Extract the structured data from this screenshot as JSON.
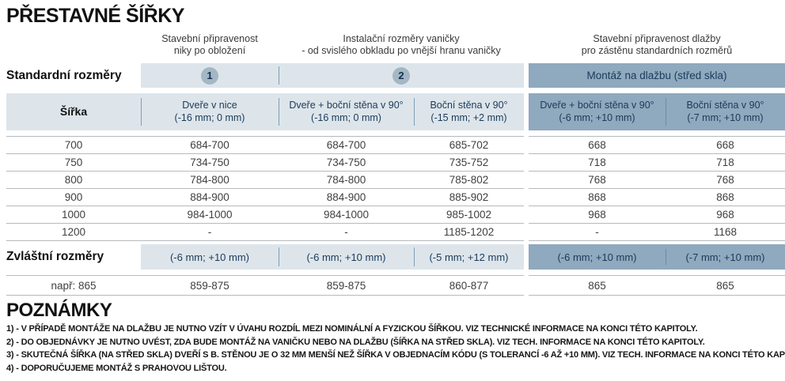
{
  "title": "PŘESTAVNÉ ŠÍŘKY",
  "group_headers": {
    "niche": "Stavební připravenost\nniky po obložení",
    "tray": "Instalační rozměry vaničky\n- od svislého obkladu po vnější hranu vaničky",
    "tile": "Stavební připravenost dlažby\npro zástěnu standardních rozměrů"
  },
  "standard_row": {
    "label": "Standardní rozměry",
    "badge1": "1",
    "badge2": "2",
    "tile_band": "Montáž na dlažbu (střed skla)"
  },
  "columns": {
    "width": "Šířka",
    "c1": "Dveře v nice\n(-16 mm; 0 mm)",
    "c2": "Dveře + boční stěna v 90°\n(-16 mm; 0 mm)",
    "c3": "Boční stěna v 90°\n(-15 mm; +2 mm)",
    "c4": "Dveře + boční stěna v 90°\n(-6 mm; +10 mm)",
    "c5": "Boční stěna v 90°\n(-7 mm; +10 mm)"
  },
  "rows": [
    {
      "width": "700",
      "values": [
        "684-700",
        "684-700",
        "685-702",
        "668",
        "668"
      ]
    },
    {
      "width": "750",
      "values": [
        "734-750",
        "734-750",
        "735-752",
        "718",
        "718"
      ]
    },
    {
      "width": "800",
      "values": [
        "784-800",
        "784-800",
        "785-802",
        "768",
        "768"
      ]
    },
    {
      "width": "900",
      "values": [
        "884-900",
        "884-900",
        "885-902",
        "868",
        "868"
      ]
    },
    {
      "width": "1000",
      "values": [
        "984-1000",
        "984-1000",
        "985-1002",
        "968",
        "968"
      ]
    },
    {
      "width": "1200",
      "values": [
        "-",
        "-",
        "1185-1202",
        "-",
        "1168"
      ]
    }
  ],
  "special_row": {
    "label": "Zvláštní rozměry",
    "tolerances": [
      "(-6 mm; +10 mm)",
      "(-6 mm; +10 mm)",
      "(-5 mm; +12 mm)",
      "(-6 mm; +10 mm)",
      "(-7 mm; +10 mm)"
    ]
  },
  "example_row": {
    "width": "např: 865",
    "values": [
      "859-875",
      "859-875",
      "860-877",
      "865",
      "865"
    ]
  },
  "notes_title": "POZNÁMKY",
  "notes": [
    {
      "num": "1)",
      "text": "- V PŘÍPADĚ MONTÁŽE NA DLAŽBU JE NUTNO VZÍT V ÚVAHU ROZDÍL MEZI NOMINÁLNÍ A FYZICKOU ŠÍŘKOU. VIZ TECHNICKÉ INFORMACE NA KONCI TÉTO KAPITOLY."
    },
    {
      "num": "2)",
      "text": "- DO OBJEDNÁVKY JE NUTNO UVÉST, ZDA BUDE MONTÁŽ NA VANIČKU NEBO NA DLAŽBU (ŠÍŘKA NA STŘED SKLA). VIZ TECH. INFORMACE NA KONCI TÉTO KAPITOLY."
    },
    {
      "num": "3)",
      "text": "- SKUTEČNÁ ŠÍŘKA (NA STŘED SKLA) DVEŘÍ S B. STĚNOU JE O 32 MM MENŠÍ NEŽ ŠÍŘKA V OBJEDNACÍM KÓDU (S TOLERANCÍ -6 AŽ +10 MM). VIZ TECH. INFORMACE NA KONCI TÉTO KAPITOLY."
    },
    {
      "num": "4)",
      "text": "- DOPORUČUJEME MONTÁŽ S PRAHOVOU LIŠTOU."
    }
  ],
  "colors": {
    "light_band": "#dde5eb",
    "dark_band": "#8fa9be",
    "badge": "#a3b7c5",
    "header_text": "#1b3a5a"
  }
}
